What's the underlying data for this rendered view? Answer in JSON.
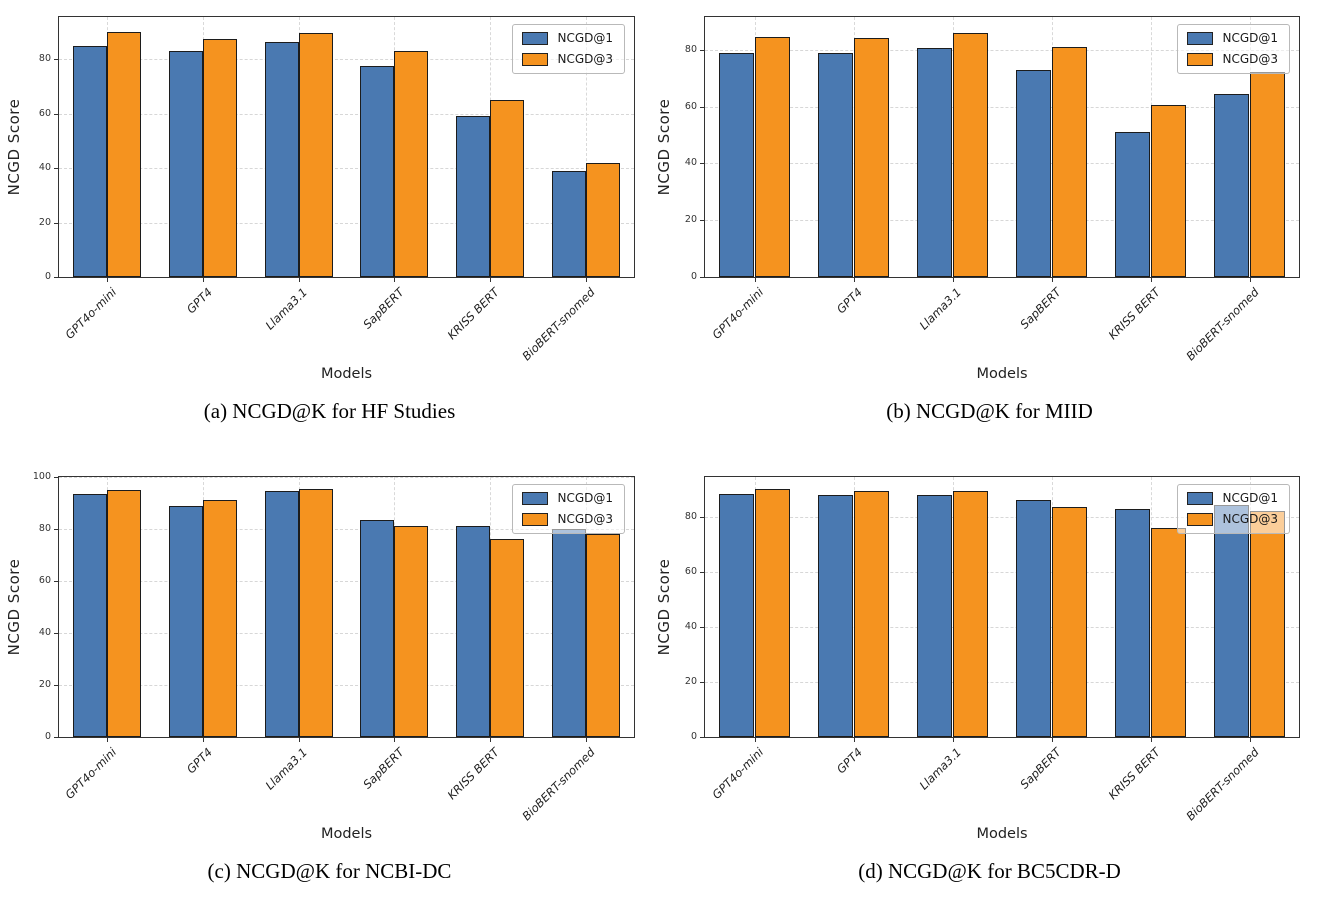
{
  "figure": {
    "ylabel": "NCGD Score",
    "xlabel": "Models",
    "legend": [
      "NCGD@1",
      "NCGD@3"
    ],
    "colors": {
      "ncgd1": "#4a79b1",
      "ncgd3": "#f5931f",
      "bar_edge": "#1c1c1c"
    }
  },
  "chart_data": [
    {
      "type": "bar",
      "caption": "(a) NCGD@K for HF Studies",
      "xlabel": "Models",
      "ylabel": "NCGD Score",
      "categories": [
        "GPT4o-mini",
        "GPT4",
        "Llama3.1",
        "SapBERT",
        "KRISS BERT",
        "BioBERT-snomed"
      ],
      "series": [
        {
          "name": "NCGD@1",
          "color": "#4a79b1",
          "values": [
            85,
            83,
            86.5,
            77.5,
            59,
            39
          ]
        },
        {
          "name": "NCGD@3",
          "color": "#f5931f",
          "values": [
            90,
            87.5,
            89.5,
            83,
            65,
            42
          ]
        }
      ],
      "yticks": [
        0,
        20,
        40,
        60,
        80
      ],
      "ylim": [
        0,
        95.5
      ],
      "grid": true,
      "legend_position": "upper right"
    },
    {
      "type": "bar",
      "caption": "(b) NCGD@K for MIID",
      "xlabel": "Models",
      "ylabel": "NCGD Score",
      "categories": [
        "GPT4o-mini",
        "GPT4",
        "Llama3.1",
        "SapBERT",
        "KRISS BERT",
        "BioBERT-snomed"
      ],
      "series": [
        {
          "name": "NCGD@1",
          "color": "#4a79b1",
          "values": [
            79,
            79,
            80.5,
            73,
            51,
            64.5
          ]
        },
        {
          "name": "NCGD@3",
          "color": "#f5931f",
          "values": [
            84.5,
            84,
            86,
            81,
            60.5,
            72
          ]
        }
      ],
      "yticks": [
        0,
        20,
        40,
        60,
        80
      ],
      "ylim": [
        0,
        91.5
      ],
      "grid": true,
      "legend_position": "upper right"
    },
    {
      "type": "bar",
      "caption": "(c) NCGD@K for NCBI-DC",
      "xlabel": "Models",
      "ylabel": "NCGD Score",
      "categories": [
        "GPT4o-mini",
        "GPT4",
        "Llama3.1",
        "SapBERT",
        "KRISS BERT",
        "BioBERT-snomed"
      ],
      "series": [
        {
          "name": "NCGD@1",
          "color": "#4a79b1",
          "values": [
            93.5,
            89,
            94.5,
            83.5,
            81,
            80
          ]
        },
        {
          "name": "NCGD@3",
          "color": "#f5931f",
          "values": [
            95,
            91,
            95.5,
            81,
            76,
            78
          ]
        }
      ],
      "yticks": [
        0,
        20,
        40,
        60,
        80,
        100
      ],
      "ylim": [
        0,
        100
      ],
      "grid": true,
      "legend_position": "upper right"
    },
    {
      "type": "bar",
      "caption": "(d) NCGD@K for BC5CDR-D",
      "xlabel": "Models",
      "ylabel": "NCGD Score",
      "categories": [
        "GPT4o-mini",
        "GPT4",
        "Llama3.1",
        "SapBERT",
        "KRISS BERT",
        "BioBERT-snomed"
      ],
      "series": [
        {
          "name": "NCGD@1",
          "color": "#4a79b1",
          "values": [
            88.5,
            88,
            88,
            86,
            83,
            84.5
          ]
        },
        {
          "name": "NCGD@3",
          "color": "#f5931f",
          "values": [
            90,
            89.5,
            89.5,
            83.5,
            76,
            82
          ]
        }
      ],
      "yticks": [
        0,
        20,
        40,
        60,
        80
      ],
      "ylim": [
        0,
        94.5
      ],
      "grid": true,
      "legend_position": "upper right"
    }
  ]
}
